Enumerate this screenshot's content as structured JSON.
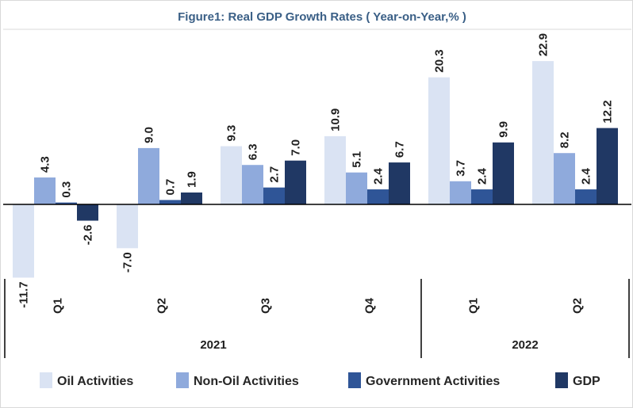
{
  "chart_data": {
    "type": "bar",
    "title": "Figure1: Real GDP Growth Rates ( Year-on-Year,% )",
    "xlabel": "",
    "ylabel": "",
    "ylim": [
      -11.7,
      22.9
    ],
    "categories": [
      "Q1",
      "Q2",
      "Q3",
      "Q4",
      "Q1",
      "Q2"
    ],
    "years": [
      {
        "label": "2021",
        "quarters": 4
      },
      {
        "label": "2022",
        "quarters": 2
      }
    ],
    "series": [
      {
        "name": "Oil Activities",
        "color": "#dae3f3",
        "values": [
          -11.7,
          -7.0,
          9.3,
          10.9,
          20.3,
          22.9
        ],
        "labels": [
          "-11.7",
          "-7.0",
          "9.3",
          "10.9",
          "20.3",
          "22.9"
        ]
      },
      {
        "name": "Non-Oil Activities",
        "color": "#8faadc",
        "values": [
          4.3,
          9.0,
          6.3,
          5.1,
          3.7,
          8.2
        ],
        "labels": [
          "4.3",
          "9.0",
          "6.3",
          "5.1",
          "3.7",
          "8.2"
        ]
      },
      {
        "name": "Government Activities",
        "color": "#2f5597",
        "values": [
          0.3,
          0.7,
          2.7,
          2.4,
          2.4,
          2.4
        ],
        "labels": [
          "0.3",
          "0.7",
          "2.7",
          "2.4",
          "2.4",
          "2.4"
        ]
      },
      {
        "name": "GDP",
        "color": "#203864",
        "values": [
          -2.6,
          1.9,
          7.0,
          6.7,
          9.9,
          12.2
        ],
        "labels": [
          "-2.6",
          "1.9",
          "7.0",
          "6.7",
          "9.9",
          "12.2"
        ]
      }
    ],
    "grid": false,
    "legend": "bottom"
  }
}
